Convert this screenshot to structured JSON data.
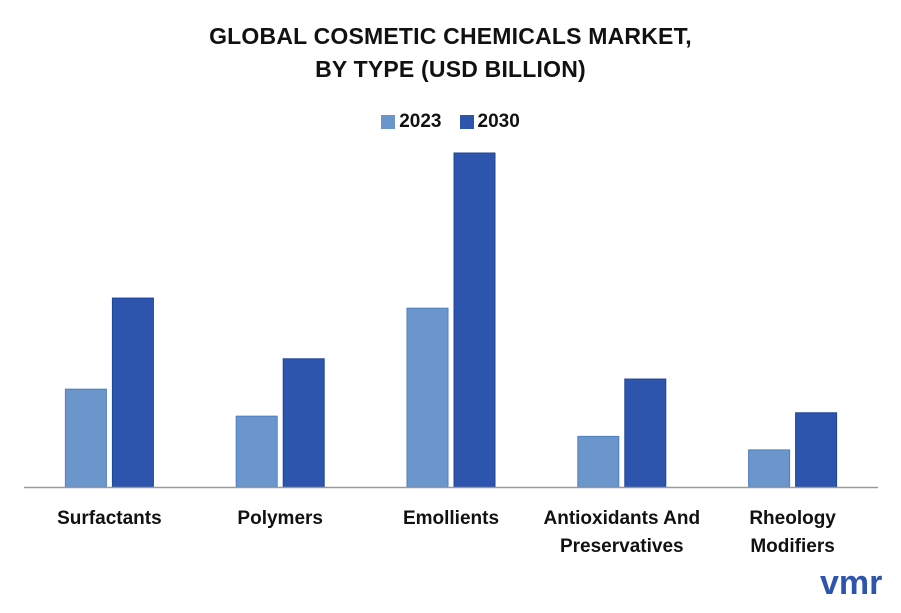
{
  "title_line1": "GLOBAL COSMETIC CHEMICALS MARKET,",
  "title_line2": "BY TYPE (USD BILLION)",
  "colors": {
    "2023": "#6a96cc",
    "2030": "#2d55ad",
    "axis": "#999999"
  },
  "chart_data": {
    "type": "bar",
    "categories": [
      "Surfactants",
      "Polymers",
      "Emollients",
      "Antioxidants And Preservatives",
      "Rheology Modifiers"
    ],
    "category_lines": [
      [
        "Surfactants"
      ],
      [
        "Polymers"
      ],
      [
        "Emollients"
      ],
      [
        "Antioxidants And",
        "Preservatives"
      ],
      [
        "Rheology",
        "Modifiers"
      ]
    ],
    "series": [
      {
        "name": "2023",
        "values": [
          2.9,
          2.1,
          5.3,
          1.5,
          1.1
        ]
      },
      {
        "name": "2030",
        "values": [
          5.6,
          3.8,
          9.9,
          3.2,
          2.2
        ]
      }
    ],
    "ylim": [
      0,
      10
    ],
    "xlabel": "",
    "ylabel": "",
    "grid": false,
    "legend_position": "top-center",
    "value_labels": false
  },
  "logo_text": "vmr"
}
